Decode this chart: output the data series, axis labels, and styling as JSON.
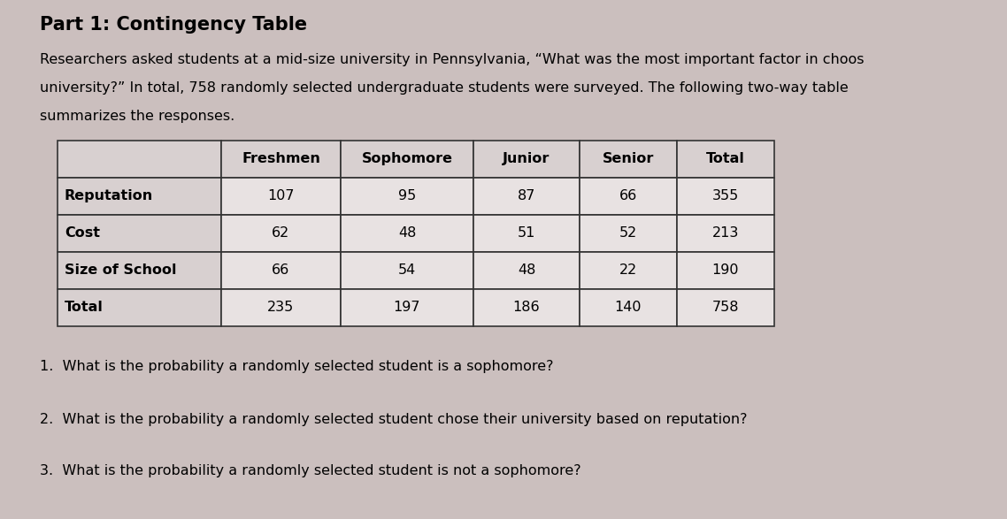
{
  "title": "Part 1: Contingency Table",
  "description_line1": "Researchers asked students at a mid-size university in Pennsylvania, “What was the most important factor in choos",
  "description_line2": "university?” In total, 758 randomly selected undergraduate students were surveyed. The following two-way table",
  "description_line3": "summarizes the responses.",
  "col_headers": [
    "",
    "Freshmen",
    "Sophomore",
    "Junior",
    "Senior",
    "Total"
  ],
  "rows": [
    [
      "Reputation",
      "107",
      "95",
      "87",
      "66",
      "355"
    ],
    [
      "Cost",
      "62",
      "48",
      "51",
      "52",
      "213"
    ],
    [
      "Size of School",
      "66",
      "54",
      "48",
      "22",
      "190"
    ],
    [
      "Total",
      "235",
      "197",
      "186",
      "140",
      "758"
    ]
  ],
  "question1": "1.  What is the probability a randomly selected student is a sophomore?",
  "question2": "2.  What is the probability a randomly selected student chose their university based on reputation?",
  "question3": "3.  What is the probability a randomly selected student is not a sophomore?",
  "bg_color": "#cbbfbe",
  "table_bg_color": "#e8e2e2",
  "header_bg_color": "#d8d0d0",
  "row_label_bg_color": "#d8d0d0",
  "title_fontsize": 15,
  "body_fontsize": 11.5,
  "table_fontsize": 11.5
}
